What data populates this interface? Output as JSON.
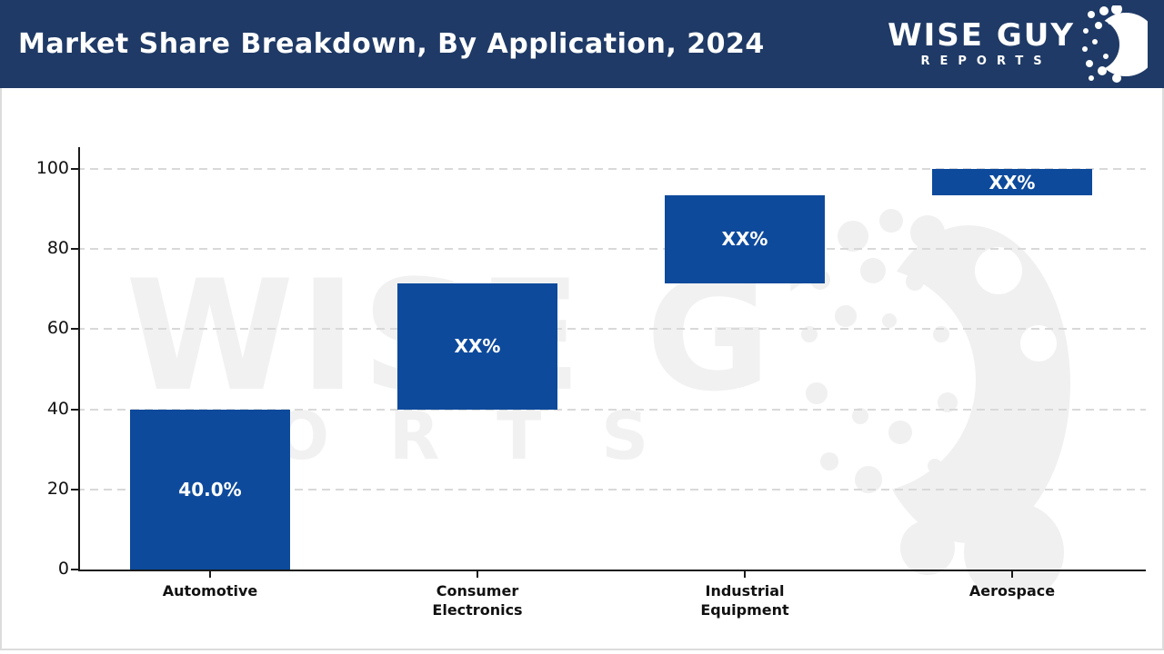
{
  "header": {
    "title": "Market Share Breakdown, By Application, 2024",
    "bg_color": "#1f3a66",
    "logo": {
      "line1": "WISE GUY",
      "line2": "REPORTS"
    }
  },
  "watermark": {
    "line1": "WISE GUY",
    "line2": "PORTS"
  },
  "chart_data": {
    "type": "bar",
    "subtype": "waterfall",
    "title": "",
    "xlabel": "",
    "ylabel": "",
    "categories": [
      "Automotive",
      "Consumer Electronics",
      "Industrial Equipment",
      "Aerospace"
    ],
    "segments": [
      {
        "start": 0,
        "end": 40,
        "label": "40.0%"
      },
      {
        "start": 40,
        "end": 71.5,
        "label": "XX%"
      },
      {
        "start": 71.5,
        "end": 93.4,
        "label": "XX%"
      },
      {
        "start": 93.4,
        "end": 100,
        "label": "XX%"
      }
    ],
    "ylim": [
      0,
      100
    ],
    "yticks": [
      0,
      20,
      40,
      60,
      80,
      100
    ],
    "grid": "dashed-horizontal",
    "legend": "none",
    "bar_color": "#0d4a9c",
    "bar_label_color": "#ffffff",
    "axis_color": "#1a1a1a",
    "grid_color": "#d9d9d9"
  }
}
